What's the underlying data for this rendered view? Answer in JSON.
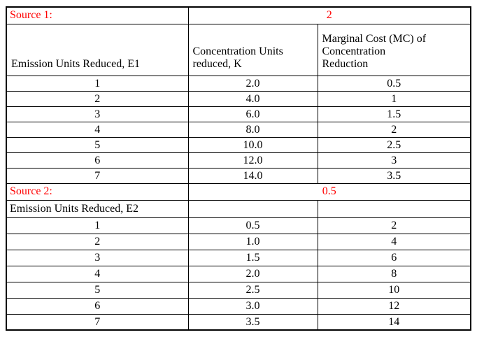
{
  "colors": {
    "accent_red": "#ff0000",
    "text": "#000000",
    "border": "#000000",
    "background": "#ffffff"
  },
  "table": {
    "source1": {
      "label": "Source 1:",
      "value": "2",
      "col1_header": [
        "Emission Units Reduced, E1"
      ],
      "col2_header": [
        "Concentration Units",
        "reduced, K"
      ],
      "col3_header": [
        "Marginal Cost (MC) of",
        "Concentration",
        "Reduction"
      ],
      "rows": [
        [
          "1",
          "2.0",
          "0.5"
        ],
        [
          "2",
          "4.0",
          "1"
        ],
        [
          "3",
          "6.0",
          "1.5"
        ],
        [
          "4",
          "8.0",
          "2"
        ],
        [
          "5",
          "10.0",
          "2.5"
        ],
        [
          "6",
          "12.0",
          "3"
        ],
        [
          "7",
          "14.0",
          "3.5"
        ]
      ]
    },
    "source2": {
      "label": "Source 2:",
      "value": "0.5",
      "header": "Emission Units Reduced, E2",
      "rows": [
        [
          "1",
          "0.5",
          "2"
        ],
        [
          "2",
          "1.0",
          "4"
        ],
        [
          "3",
          "1.5",
          "6"
        ],
        [
          "4",
          "2.0",
          "8"
        ],
        [
          "5",
          "2.5",
          "10"
        ],
        [
          "6",
          "3.0",
          "12"
        ],
        [
          "7",
          "3.5",
          "14"
        ]
      ]
    }
  }
}
